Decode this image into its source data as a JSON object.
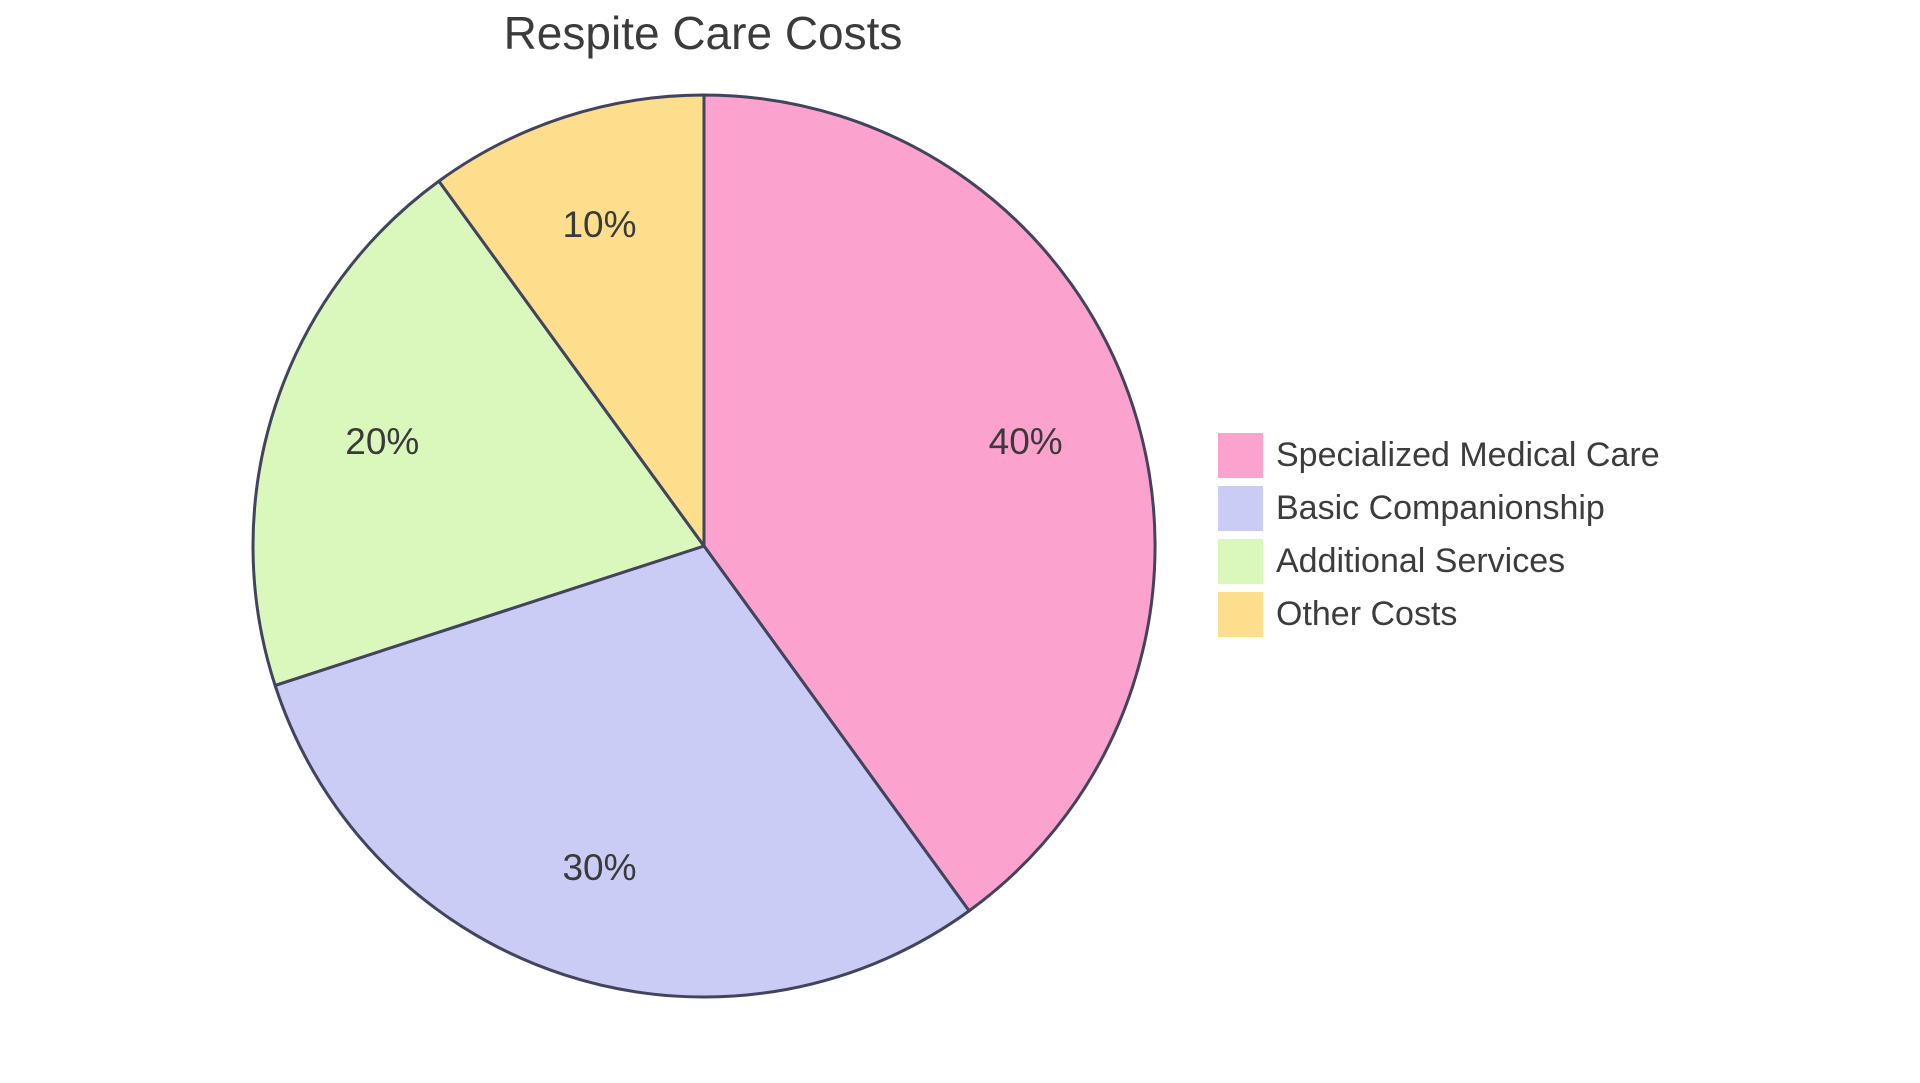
{
  "title": "Respite Care Costs",
  "chart_data": {
    "type": "pie",
    "title": "Respite Care Costs",
    "slices": [
      {
        "label": "Specialized Medical Care",
        "value": 40,
        "percent_label": "40%",
        "color": "#FCA2CF"
      },
      {
        "label": "Basic Companionship",
        "value": 30,
        "percent_label": "30%",
        "color": "#CACCF6"
      },
      {
        "label": "Additional Services",
        "value": 20,
        "percent_label": "20%",
        "color": "#DAF8BC"
      },
      {
        "label": "Other Costs",
        "value": 10,
        "percent_label": "10%",
        "color": "#FDDE8D"
      }
    ],
    "start_angle_deg": 90,
    "direction": "clockwise",
    "slice_border_color": "#41445C",
    "slice_border_width": 3,
    "percent_label_color": "#3A3A3A",
    "title_color": "#3B3B3B",
    "legend_text_color": "#3C3C3C",
    "legend_position": "right",
    "background_color": "#FFFFFF"
  }
}
